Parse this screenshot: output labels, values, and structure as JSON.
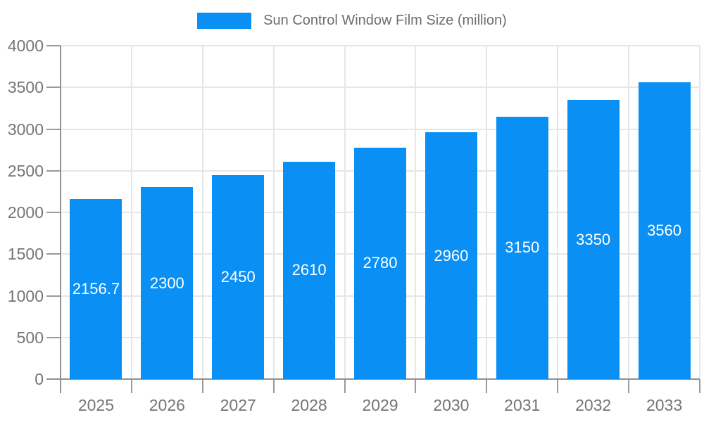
{
  "legend": {
    "items": [
      {
        "label": "Sun Control Window Film Size (million)"
      }
    ]
  },
  "colors": {
    "bar": "#0a8ff5",
    "axis": "#909090",
    "tick": "#9a9a9a",
    "grid": "#e6e6e6",
    "axis_label": "#757575",
    "legend_text": "#6e6e6e",
    "bar_label": "#ffffff",
    "background": "#ffffff"
  },
  "chart_data": {
    "type": "bar",
    "title": "Sun Control Window Film Size (million)",
    "legend": [
      "Sun Control Window Film Size (million)"
    ],
    "legend_position": "top-center",
    "categories": [
      "2025",
      "2026",
      "2027",
      "2028",
      "2029",
      "2030",
      "2031",
      "2032",
      "2033"
    ],
    "values": [
      2156.7,
      2300,
      2450,
      2610,
      2780,
      2960,
      3150,
      3350,
      3560
    ],
    "value_labels": [
      "2156.7",
      "2300",
      "2450",
      "2610",
      "2780",
      "2960",
      "3150",
      "3350",
      "3560"
    ],
    "value_label_position": "inside-center",
    "xlabel": "",
    "ylabel": "",
    "ylim": [
      0,
      4000
    ],
    "ytick_step": 500,
    "ytick_labels": [
      "0",
      "500",
      "1000",
      "1500",
      "2000",
      "2500",
      "3000",
      "3500",
      "4000"
    ],
    "grid": true
  }
}
